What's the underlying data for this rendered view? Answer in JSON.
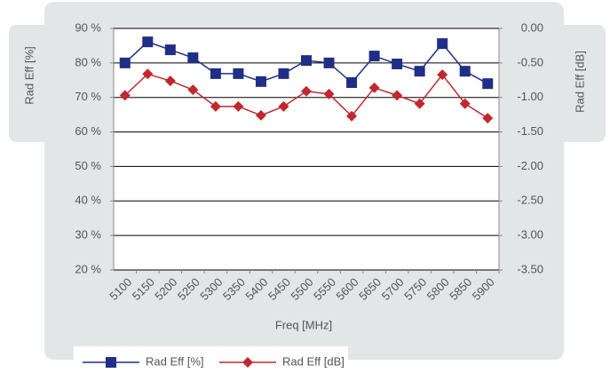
{
  "chart_data": {
    "type": "line",
    "x_label": "Freq [MHz]",
    "y_label": "Rad Eff [%]",
    "y2_label": "Rad Eff [dB]",
    "categories": [
      "5100",
      "5150",
      "5200",
      "5250",
      "5300",
      "5350",
      "5400",
      "5450",
      "5500",
      "5550",
      "5600",
      "5650",
      "5700",
      "5750",
      "5800",
      "5850",
      "5900"
    ],
    "series": [
      {
        "name": "Rad Eff [%]",
        "color": "#1f2f87",
        "marker": "square",
        "values": [
          80.0,
          86.1,
          83.8,
          81.5,
          76.9,
          76.9,
          74.6,
          76.9,
          80.7,
          80.0,
          74.3,
          82.0,
          79.7,
          77.6,
          85.6,
          77.6,
          74.0
        ]
      },
      {
        "name": "Rad Eff [dB]",
        "color": "#c0282e",
        "marker": "diamond",
        "axis": "y2",
        "values": [
          -0.97,
          -0.66,
          -0.76,
          -0.89,
          -1.13,
          -1.13,
          -1.26,
          -1.13,
          -0.91,
          -0.95,
          -1.27,
          -0.86,
          -0.97,
          -1.09,
          -0.67,
          -1.09,
          -1.3
        ]
      }
    ],
    "ylim": [
      20,
      90
    ],
    "yticks": [
      {
        "value": 20,
        "label": "20 %"
      },
      {
        "value": 30,
        "label": "30 %"
      },
      {
        "value": 40,
        "label": "40 %"
      },
      {
        "value": 50,
        "label": "50 %"
      },
      {
        "value": 60,
        "label": "60 %"
      },
      {
        "value": 70,
        "label": "70 %"
      },
      {
        "value": 80,
        "label": "80 %"
      },
      {
        "value": 90,
        "label": "90 %"
      }
    ],
    "y2lim": [
      -3.5,
      0
    ],
    "y2ticks": [
      {
        "value": -3.5,
        "label": "-3.50"
      },
      {
        "value": -3,
        "label": "-3.00"
      },
      {
        "value": -2.5,
        "label": "-2.50"
      },
      {
        "value": -2,
        "label": "-2.00"
      },
      {
        "value": -1.5,
        "label": "-1.50"
      },
      {
        "value": -1,
        "label": "-1.00"
      },
      {
        "value": -0.5,
        "label": "-0.50"
      },
      {
        "value": 0,
        "label": "0.00"
      }
    ],
    "grid": true,
    "legend": "bottom-left"
  }
}
